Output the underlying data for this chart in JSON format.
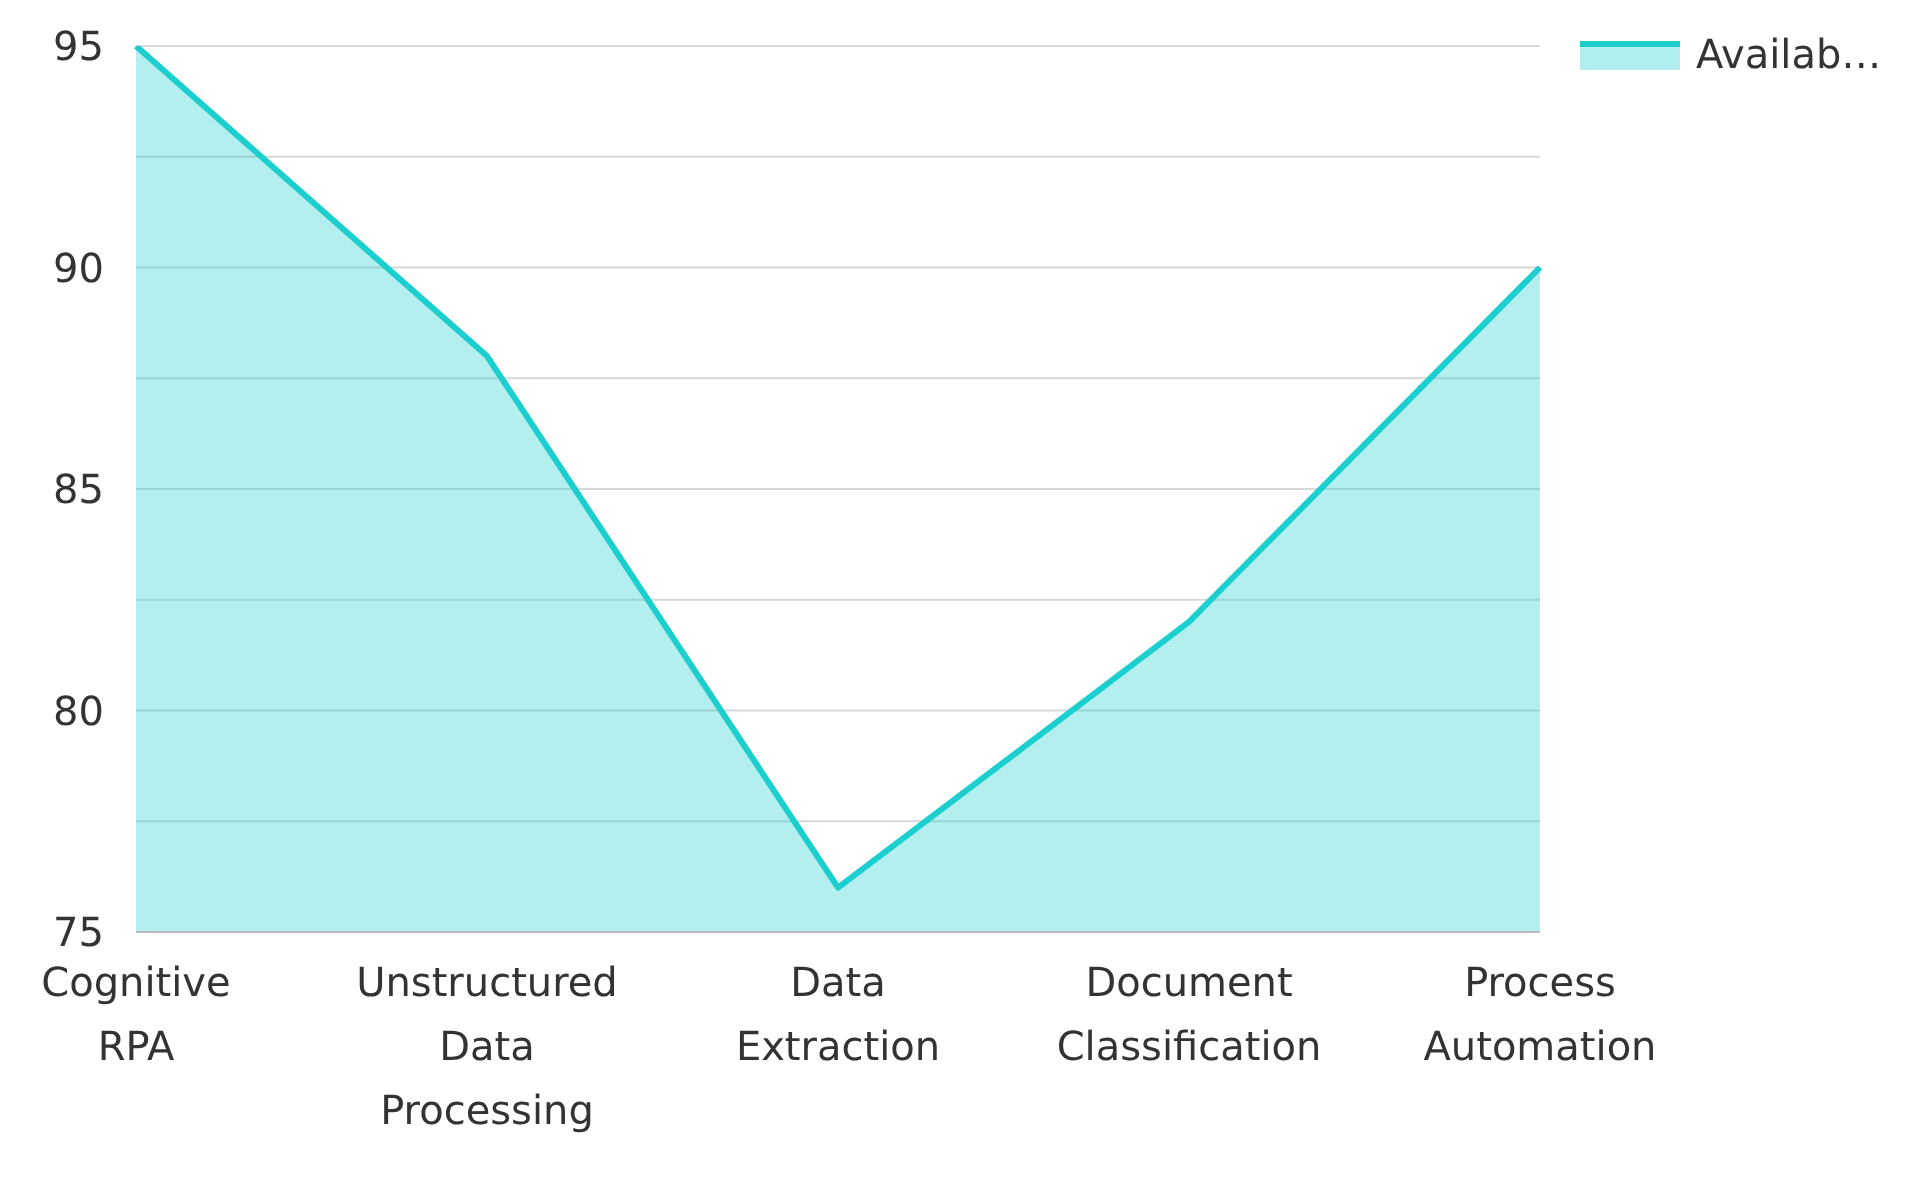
{
  "chart_data": {
    "type": "area",
    "categories": [
      "Cognitive RPA",
      "Unstructured Data Processing",
      "Data Extraction",
      "Document Classification",
      "Process Automation"
    ],
    "series": [
      {
        "name": "Availab…",
        "color": "#1ccfcf",
        "values": [
          95,
          88,
          76,
          82,
          90
        ]
      }
    ],
    "ylim": [
      75,
      95
    ],
    "yticks": [
      75,
      {
        "value": 77.5,
        "label": null
      },
      80,
      {
        "value": 82.5,
        "label": null
      },
      85,
      {
        "value": 87.5,
        "label": null
      },
      90,
      {
        "value": 92.5,
        "label": null
      },
      95
    ],
    "grid": "y",
    "legend": "top right",
    "marker": "none",
    "line_style": "solid"
  }
}
